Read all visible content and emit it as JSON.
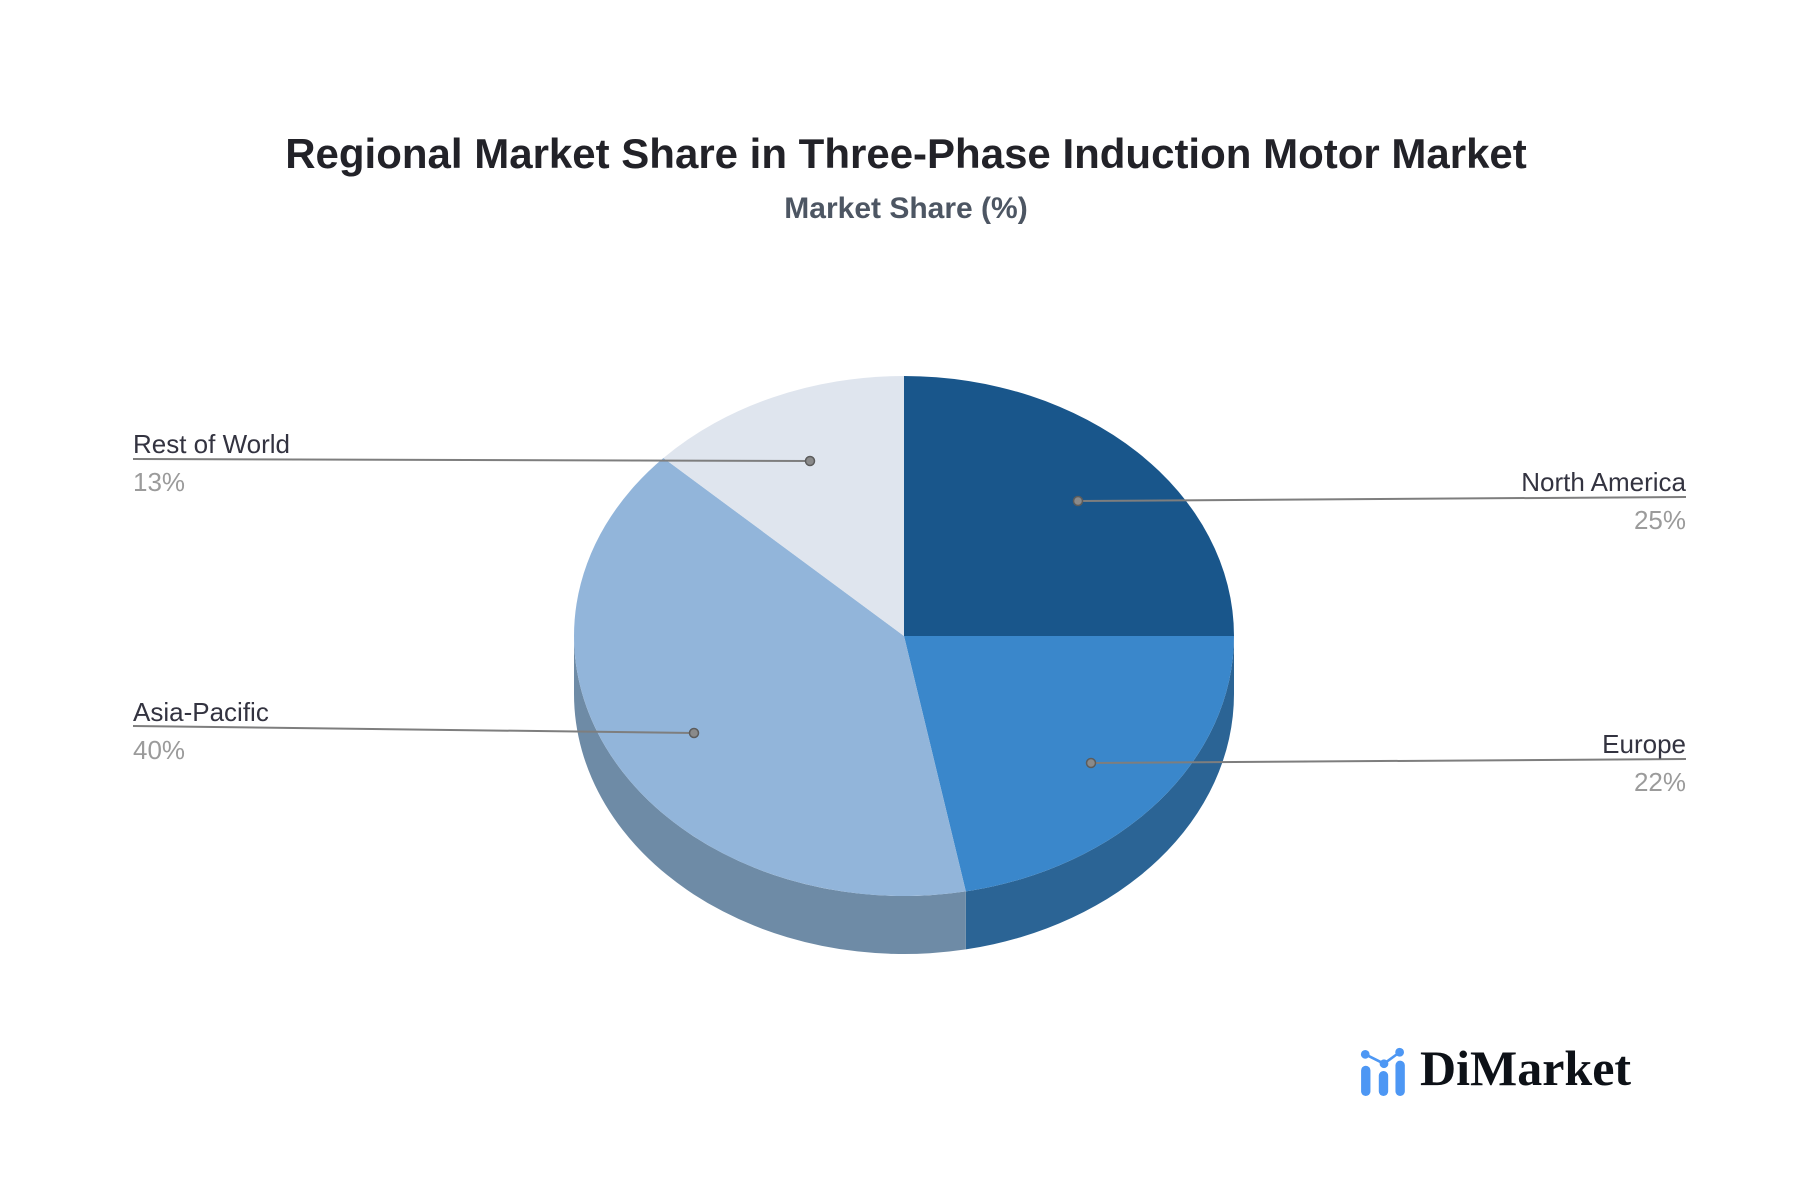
{
  "title": "Regional Market Share in Three-Phase Induction Motor Market",
  "subtitle": "Market Share (%)",
  "watermark": {
    "brand": "DiMarket",
    "icon": "bar-chart-icon",
    "icon_color": "#4D97F4",
    "text_color": "#0D1117"
  },
  "chart_data": {
    "type": "pie",
    "title": "Regional Market Share in Three-Phase Induction Motor Market",
    "subtitle": "Market Share (%)",
    "unit": "%",
    "style": "3d-pie",
    "direction": "clockwise",
    "start_angle_deg": 0,
    "legend": "none",
    "labels_layout": "callout-lines",
    "connector_color": "#7E7E7E",
    "slices": [
      {
        "label": "North America",
        "value": 25,
        "pct": "25%",
        "color": "#19568B",
        "side_color": "#2B6495"
      },
      {
        "label": "Europe",
        "value": 22,
        "pct": "22%",
        "color": "#3A87CB",
        "side_color": "#2B6495"
      },
      {
        "label": "Asia-Pacific",
        "value": 40,
        "pct": "40%",
        "color": "#92B5DA",
        "side_color": "#6E8BA6"
      },
      {
        "label": "Rest of World",
        "value": 13,
        "pct": "13%",
        "color": "#DFE5EE",
        "side_color": "#A9B5C6"
      }
    ]
  }
}
